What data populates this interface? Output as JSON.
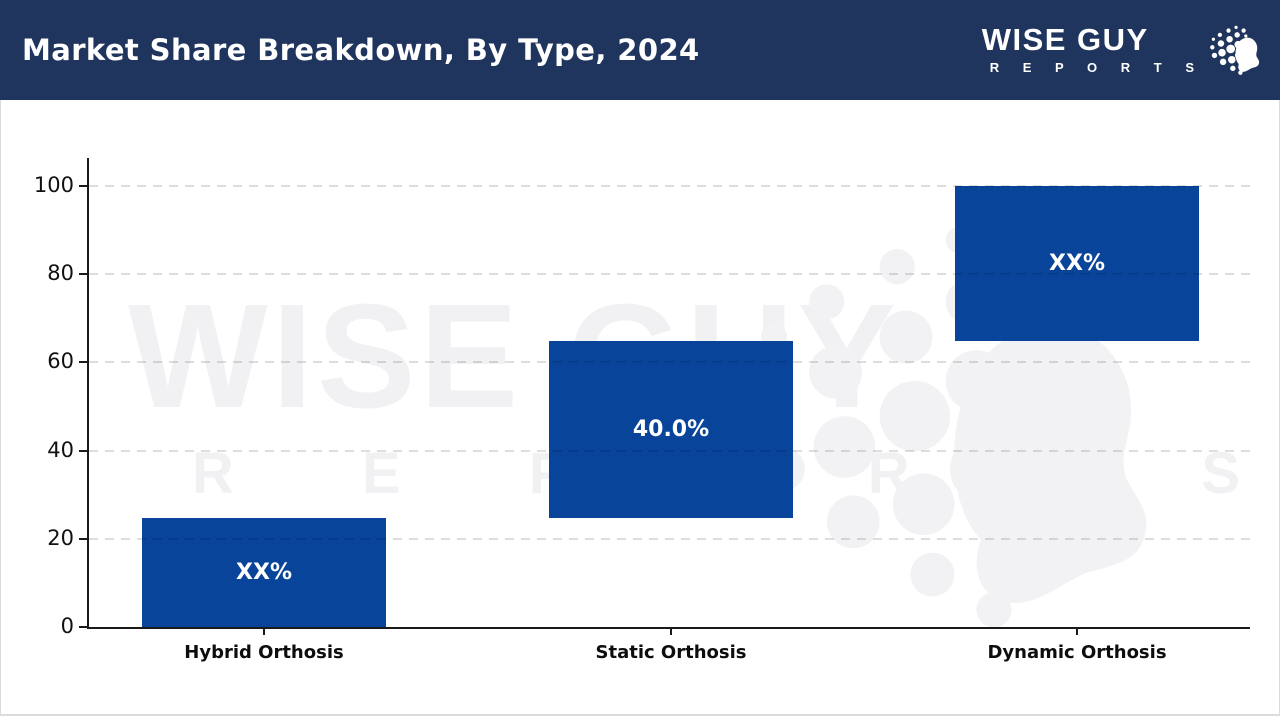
{
  "header": {
    "title": "Market Share Breakdown, By Type, 2024",
    "bg_color": "#1f355e",
    "logo": {
      "line1": "WISE GUY",
      "line2": "R E P O R T S"
    }
  },
  "watermark": {
    "line1": "WISE GUY",
    "line2": "R E P O R T S"
  },
  "chart_data": {
    "type": "bar",
    "subtype": "waterfall",
    "title": "Market Share Breakdown, By Type, 2024",
    "categories": [
      "Hybrid Orthosis",
      "Static Orthosis",
      "Dynamic Orthosis"
    ],
    "segments": [
      {
        "category": "Hybrid Orthosis",
        "start": 0,
        "end": 24.8,
        "value": 24.8,
        "label": "XX%"
      },
      {
        "category": "Static Orthosis",
        "start": 24.8,
        "end": 64.8,
        "value": 40.0,
        "label": "40.0%"
      },
      {
        "category": "Dynamic Orthosis",
        "start": 64.8,
        "end": 100,
        "value": 35.2,
        "label": "XX%"
      }
    ],
    "values_display": [
      "XX%",
      "40.0%",
      "XX%"
    ],
    "ylim": [
      0,
      100
    ],
    "yticks": [
      0,
      20,
      40,
      60,
      80,
      100
    ],
    "grid": "horizontal-dashed",
    "legend": "none",
    "bar_color": "#084499",
    "bar_label_color": "#ffffff",
    "axis_color": "#1a1a1a",
    "grid_color": "#d9d9d9"
  }
}
